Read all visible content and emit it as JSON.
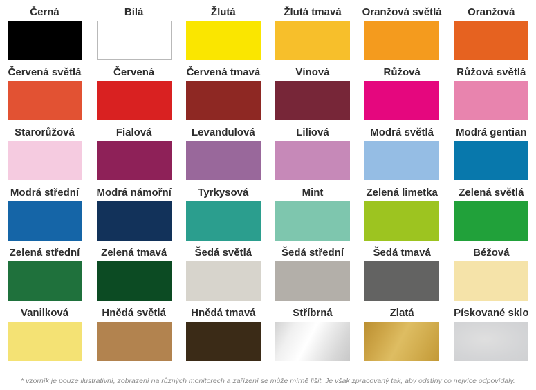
{
  "chart_data": {
    "type": "table",
    "title": "",
    "columns": [
      "name",
      "color"
    ],
    "rows": [
      [
        "Černá",
        "#000000"
      ],
      [
        "Bílá",
        "#ffffff"
      ],
      [
        "Žlutá",
        "#fae600"
      ],
      [
        "Žlutá tmavá",
        "#f7bf2b"
      ],
      [
        "Oranžová světlá",
        "#f49b1e"
      ],
      [
        "Oranžová",
        "#e66220"
      ],
      [
        "Červená světlá",
        "#e25233"
      ],
      [
        "Červená",
        "#d92121"
      ],
      [
        "Červená tmavá",
        "#8e2823"
      ],
      [
        "Vínová",
        "#772638"
      ],
      [
        "Růžová",
        "#e5077e"
      ],
      [
        "Růžová světlá",
        "#e884ae"
      ],
      [
        "Starorůžová",
        "#f5cbe0"
      ],
      [
        "Fialová",
        "#8e2158"
      ],
      [
        "Levandulová",
        "#99689b"
      ],
      [
        "Liliová",
        "#c689b8"
      ],
      [
        "Modrá světlá",
        "#95bde4"
      ],
      [
        "Modrá gentian",
        "#0878ac"
      ],
      [
        "Modrá střední",
        "#1565a7"
      ],
      [
        "Modrá námořní",
        "#12325a"
      ],
      [
        "Tyrkysová",
        "#2b9e8e"
      ],
      [
        "Mint",
        "#7ec6ae"
      ],
      [
        "Zelená limetka",
        "#9dc420"
      ],
      [
        "Zelená světlá",
        "#21a13a"
      ],
      [
        "Zelená střední",
        "#1f713c"
      ],
      [
        "Zelená tmavá",
        "#0c4b23"
      ],
      [
        "Šedá světlá",
        "#d7d4cc"
      ],
      [
        "Šedá střední",
        "#b3afa9"
      ],
      [
        "Šedá tmavá",
        "#636362"
      ],
      [
        "Béžová",
        "#f5e3a9"
      ],
      [
        "Vanilková",
        "#f4e274"
      ],
      [
        "Hnědá světlá",
        "#b2834f"
      ],
      [
        "Hnědá tmavá",
        "#3b2b17"
      ],
      [
        "Stříbrná",
        "silver-gradient"
      ],
      [
        "Zlatá",
        "gold-gradient"
      ],
      [
        "Pískované sklo",
        "frosted-glass"
      ]
    ]
  },
  "swatches": [
    {
      "name": "Černá",
      "fill": "#000000"
    },
    {
      "name": "Bílá",
      "fill": "#ffffff",
      "bordered": true
    },
    {
      "name": "Žlutá",
      "fill": "#fae600"
    },
    {
      "name": "Žlutá tmavá",
      "fill": "#f7bf2b"
    },
    {
      "name": "Oranžová světlá",
      "fill": "#f49b1e"
    },
    {
      "name": "Oranžová",
      "fill": "#e66220"
    },
    {
      "name": "Červená světlá",
      "fill": "#e25233"
    },
    {
      "name": "Červená",
      "fill": "#d92121"
    },
    {
      "name": "Červená tmavá",
      "fill": "#8e2823"
    },
    {
      "name": "Vínová",
      "fill": "#772638"
    },
    {
      "name": "Růžová",
      "fill": "#e5077e"
    },
    {
      "name": "Růžová světlá",
      "fill": "#e884ae"
    },
    {
      "name": "Starorůžová",
      "fill": "#f5cbe0"
    },
    {
      "name": "Fialová",
      "fill": "#8e2158"
    },
    {
      "name": "Levandulová",
      "fill": "#99689b"
    },
    {
      "name": "Liliová",
      "fill": "#c689b8"
    },
    {
      "name": "Modrá světlá",
      "fill": "#95bde4"
    },
    {
      "name": "Modrá gentian",
      "fill": "#0878ac"
    },
    {
      "name": "Modrá střední",
      "fill": "#1565a7"
    },
    {
      "name": "Modrá námořní",
      "fill": "#12325a"
    },
    {
      "name": "Tyrkysová",
      "fill": "#2b9e8e"
    },
    {
      "name": "Mint",
      "fill": "#7ec6ae"
    },
    {
      "name": "Zelená limetka",
      "fill": "#9dc420"
    },
    {
      "name": "Zelená světlá",
      "fill": "#21a13a"
    },
    {
      "name": "Zelená střední",
      "fill": "#1f713c"
    },
    {
      "name": "Zelená tmavá",
      "fill": "#0c4b23"
    },
    {
      "name": "Šedá světlá",
      "fill": "#d7d4cc"
    },
    {
      "name": "Šedá střední",
      "fill": "#b3afa9"
    },
    {
      "name": "Šedá tmavá",
      "fill": "#636362"
    },
    {
      "name": "Béžová",
      "fill": "#f5e3a9"
    },
    {
      "name": "Vanilková",
      "fill": "#f4e274"
    },
    {
      "name": "Hnědá světlá",
      "fill": "#b2834f"
    },
    {
      "name": "Hnědá tmavá",
      "fill": "#3b2b17"
    },
    {
      "name": "Stříbrná",
      "finish": "silver"
    },
    {
      "name": "Zlatá",
      "finish": "gold"
    },
    {
      "name": "Pískované sklo",
      "finish": "frosted"
    }
  ],
  "footnote": {
    "text": "* vzorník je pouze ilustrativní, zobrazení na různých monitorech a zařízení se může mírně lišit. Je však zpracovaný tak, aby odstíny co nejvíce odpovídaly."
  },
  "colors": {
    "background": "#ffffff",
    "label_text": "#2d2d2d",
    "footnote_text": "#8b8b8b",
    "white_swatch_border": "#b9b9b9"
  }
}
